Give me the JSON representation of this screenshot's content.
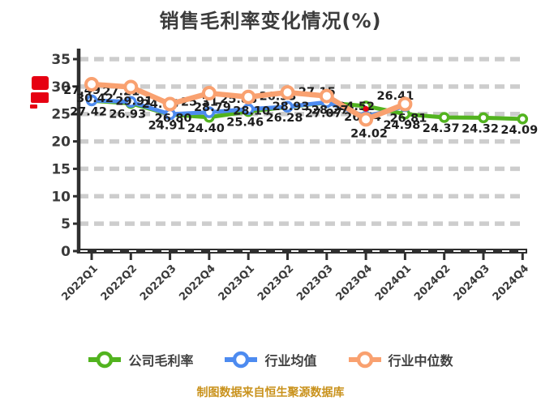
{
  "title": "销售毛利率变化情况(%)",
  "caption": "制图数据来自恒生聚源数据库",
  "stamp": {
    "color": "#e60012"
  },
  "colors": {
    "background": "#ffffff",
    "title": "#3c3c3c",
    "axis": "#2f2f2f",
    "grid": "#cdcdcd",
    "tick_text": "#3a3a3a",
    "point_label": "#1e1e1e",
    "caption": "#c9921c"
  },
  "chart_data": {
    "type": "line",
    "title": "销售毛利率变化情况(%)",
    "categories": [
      "2022Q1",
      "2022Q2",
      "2022Q3",
      "2022Q4",
      "2023Q1",
      "2023Q2",
      "2023Q3",
      "2023Q4",
      "2024Q1",
      "2024Q2",
      "2024Q3",
      "2024Q4"
    ],
    "series": [
      {
        "name": "公司毛利率",
        "color": "#52b31f",
        "values": [
          27.42,
          26.93,
          24.91,
          24.4,
          25.46,
          26.28,
          27.07,
          26.44,
          24.98,
          24.37,
          24.32,
          24.09
        ]
      },
      {
        "name": "行业均值",
        "color": "#4d8bf0",
        "values": [
          27.49,
          27.21,
          24.95,
          25.31,
          25.88,
          26.33,
          27.15,
          24.52,
          26.41
        ]
      },
      {
        "name": "行业中位数",
        "color": "#f9a170",
        "values": [
          30.42,
          29.91,
          26.8,
          28.79,
          28.1,
          28.93,
          28.27,
          24.02,
          26.81
        ]
      }
    ],
    "xlabel": "",
    "ylabel": "",
    "ylim": [
      0,
      35
    ],
    "ytick_step": 5,
    "grid": "horizontal-dashed",
    "legend_position": "bottom",
    "annotation": {
      "series_index": 2,
      "point_index": 7,
      "type": "alert-dot",
      "color": "#e60012"
    }
  }
}
